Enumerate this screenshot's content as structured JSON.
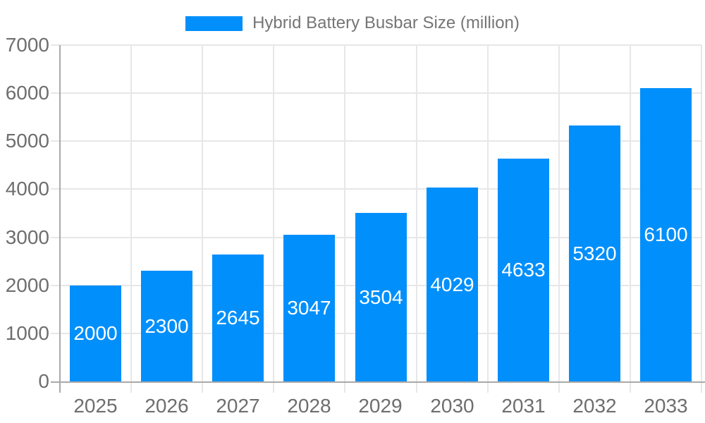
{
  "chart_data": {
    "type": "bar",
    "title": "Hybrid Battery Busbar Size (million)",
    "series_name": "Hybrid Battery Busbar Size (million)",
    "categories": [
      "2025",
      "2026",
      "2027",
      "2028",
      "2029",
      "2030",
      "2031",
      "2032",
      "2033"
    ],
    "values": [
      2000,
      2300,
      2645,
      3047,
      3504,
      4029,
      4633,
      5320,
      6100
    ],
    "xlabel": "",
    "ylabel": "",
    "ylim": [
      0,
      7000
    ],
    "yticks": [
      0,
      1000,
      2000,
      3000,
      4000,
      5000,
      6000,
      7000
    ],
    "grid": true,
    "legend_position": "top",
    "value_labels": "inside-center-white",
    "colors": {
      "bar": "#008FFB",
      "value_label": "#FFFFFF",
      "axis_line": "#A9A9A9",
      "gridline": "#E7E7E7",
      "tick_label": "#6E6E6E",
      "legend_text": "#757575",
      "background": "#FFFFFF"
    }
  }
}
